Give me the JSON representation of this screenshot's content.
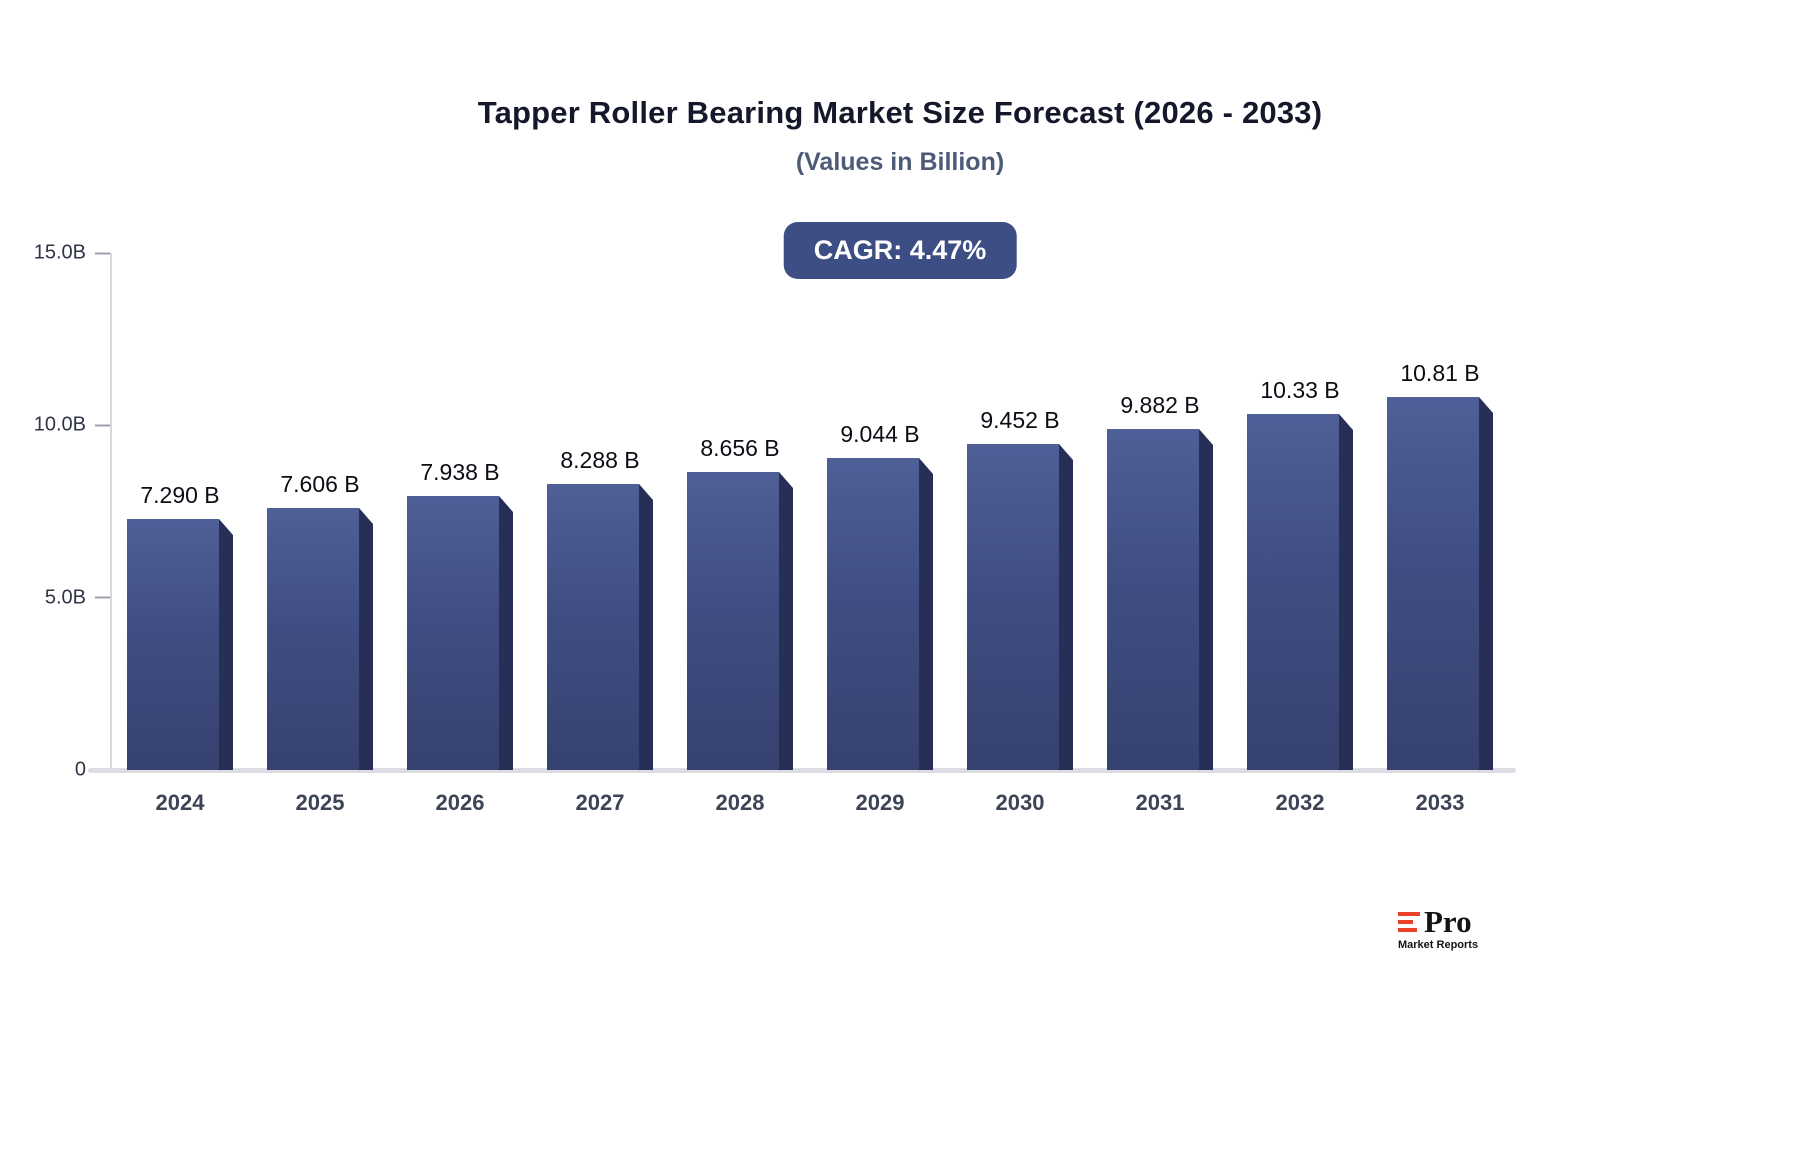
{
  "header": {
    "title": "Tapper Roller Bearing Market Size Forecast (2026 - 2033)",
    "subtitle": "(Values in Billion)"
  },
  "cagr_badge": {
    "label": "CAGR: 4.47%"
  },
  "colors": {
    "bar_main": "#3f4d82",
    "bar_side": "#262f55",
    "badge_bg": "#3d4e85",
    "accent_red": "#e8412c"
  },
  "chart_data": {
    "type": "bar",
    "title": "Tapper Roller Bearing Market Size Forecast (2026 - 2033)",
    "subtitle": "(Values in Billion)",
    "categories": [
      "2024",
      "2025",
      "2026",
      "2027",
      "2028",
      "2029",
      "2030",
      "2031",
      "2032",
      "2033"
    ],
    "values": [
      7.29,
      7.606,
      7.938,
      8.288,
      8.656,
      9.044,
      9.452,
      9.882,
      10.33,
      10.81
    ],
    "value_labels": [
      "7.290 B",
      "7.606 B",
      "7.938 B",
      "8.288 B",
      "8.656 B",
      "9.044 B",
      "9.452 B",
      "9.882 B",
      "10.33 B",
      "10.81 B"
    ],
    "xlabel": "",
    "ylabel": "",
    "ylim": [
      0,
      15
    ],
    "y_ticks": [
      {
        "value": 0,
        "label": "0"
      },
      {
        "value": 5,
        "label": "5.0B"
      },
      {
        "value": 10,
        "label": "10.0B"
      },
      {
        "value": 15,
        "label": "15.0B"
      }
    ],
    "grid": false,
    "legend": false,
    "annotation": "CAGR: 4.47%"
  },
  "logo": {
    "name": "Pro",
    "tagline": "Market Reports"
  }
}
